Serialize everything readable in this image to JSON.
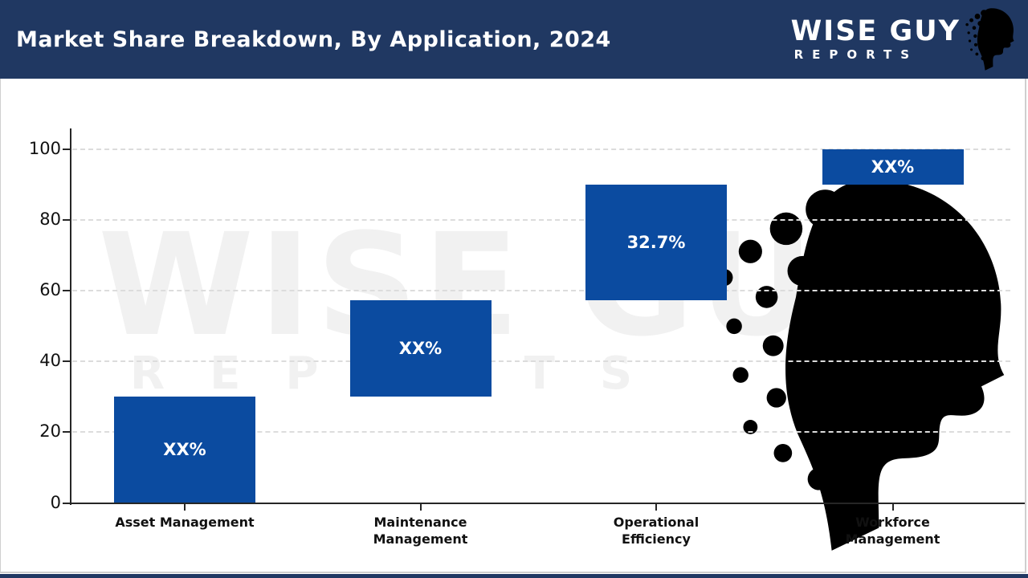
{
  "header": {
    "title": "Market Share Breakdown, By Application, 2024",
    "bg_color": "#203862",
    "logo": {
      "line1": "WISE GUY",
      "line2": "REPORTS"
    }
  },
  "watermark": {
    "line1": "WISE GUY",
    "line2": "REPORTS"
  },
  "chart_data": {
    "type": "bar",
    "subtype": "waterfall",
    "title": "Market Share Breakdown, By Application, 2024",
    "categories": [
      "Asset Management",
      "Maintenance\nManagement",
      "Operational\nEfficiency",
      "Workforce\nManagement"
    ],
    "segments": [
      {
        "category": "Asset Management",
        "start": 0,
        "end": 30,
        "value_label": "XX%"
      },
      {
        "category": "Maintenance Management",
        "start": 30,
        "end": 57.2,
        "value_label": "XX%"
      },
      {
        "category": "Operational Efficiency",
        "start": 57.2,
        "end": 89.9,
        "value_label": "32.7%"
      },
      {
        "category": "Workforce Management",
        "start": 89.9,
        "end": 100,
        "value_label": "XX%"
      }
    ],
    "ylim": [
      0,
      100
    ],
    "yticks": [
      0,
      20,
      40,
      60,
      80,
      100
    ],
    "xlabel": "",
    "ylabel": "",
    "bar_color": "#0b4ba0",
    "grid": "horizontal-dashed",
    "legend": "none"
  }
}
